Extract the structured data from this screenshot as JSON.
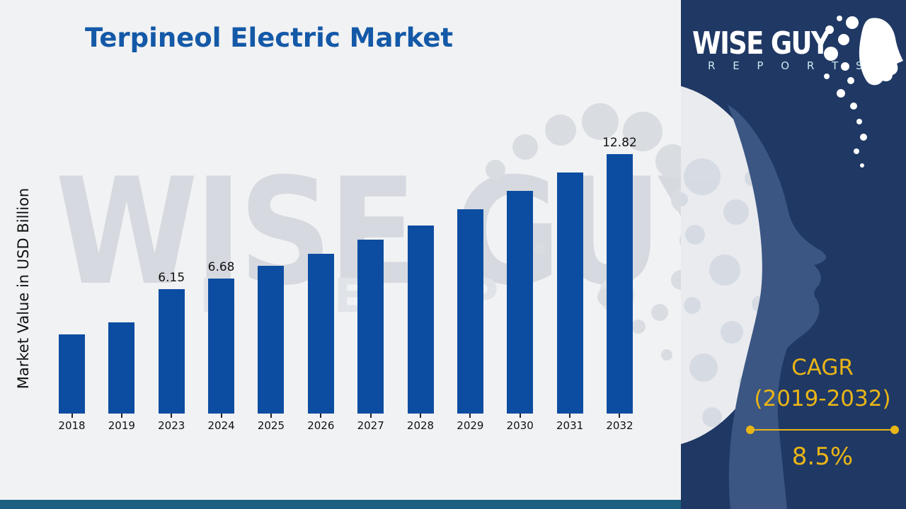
{
  "title": "Terpineol Electric Market",
  "y_axis_label": "Market Value in USD Billion",
  "watermark": {
    "line1": "WISE GUY",
    "line2": "R E P O R T S"
  },
  "brand": {
    "line1": "WISE GUY",
    "line2": "R E P O R T S"
  },
  "cagr": {
    "label_line1": "CAGR",
    "label_line2": "(2019-2032)",
    "value": "8.5%"
  },
  "colors": {
    "background": "#f1f2f3",
    "bar": "#0d4da1",
    "title_text": "#1459a8",
    "sidebar_navy": "#1f3864",
    "face_navy": "#3b5683",
    "blob_gray": "#e9ebef",
    "gold": "#e9b517",
    "teal_strip": "#1c5f80",
    "watermark_gray": "#d6d9df"
  },
  "chart_data": {
    "type": "bar",
    "categories": [
      "2018",
      "2019",
      "2023",
      "2024",
      "2025",
      "2026",
      "2027",
      "2028",
      "2029",
      "2030",
      "2031",
      "2032"
    ],
    "values": [
      3.9,
      4.5,
      6.15,
      6.68,
      7.3,
      7.9,
      8.6,
      9.3,
      10.1,
      11.0,
      11.9,
      12.82
    ],
    "value_labels": {
      "2023": "6.15",
      "2024": "6.68",
      "2032": "12.82"
    },
    "title": "Terpineol Electric Market",
    "xlabel": "",
    "ylabel": "Market Value in USD Billion",
    "ylim": [
      0,
      14
    ],
    "grid": false,
    "legend": false,
    "bar_color": "#0d4da1"
  }
}
